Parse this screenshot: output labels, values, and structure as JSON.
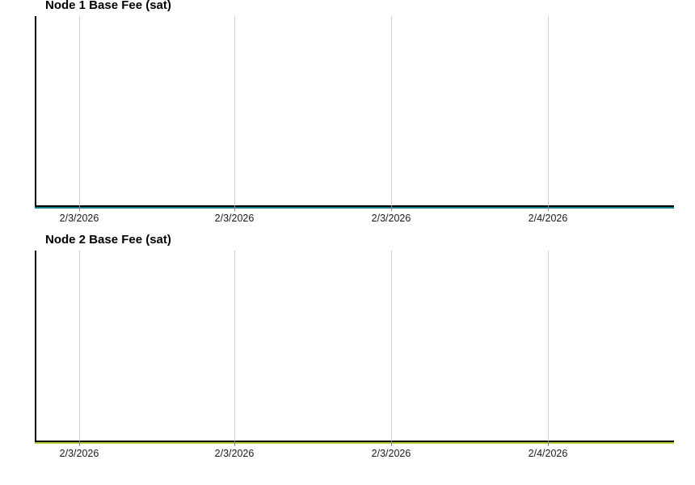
{
  "page": {
    "background_color": "#ffffff",
    "text_color": "#000000",
    "gridline_color": "#d0d0d0",
    "axis_color": "#000000",
    "tick_color": "#8a8a8a"
  },
  "chart_data": [
    {
      "type": "line",
      "title": "Node 1 Base Fee (sat)",
      "xlabel": "",
      "ylabel": "",
      "x_tick_labels": [
        "2/3/2026",
        "2/3/2026",
        "2/3/2026",
        "2/4/2026"
      ],
      "y_tick_labels": [],
      "grid": "vertical-gridlines-only",
      "legend": "none",
      "series": [
        {
          "name": "Node 1 Base Fee (sat)",
          "color": "#15808d",
          "values": [
            0,
            0,
            0,
            0
          ],
          "shape": "constant flat line running along the bottom edge of the plot across the full x-range; y-axis has no visible scale labels"
        }
      ]
    },
    {
      "type": "line",
      "title": "Node 2 Base Fee (sat)",
      "xlabel": "",
      "ylabel": "",
      "x_tick_labels": [
        "2/3/2026",
        "2/3/2026",
        "2/3/2026",
        "2/4/2026"
      ],
      "y_tick_labels": [],
      "grid": "vertical-gridlines-only",
      "legend": "none",
      "series": [
        {
          "name": "Node 2 Base Fee (sat)",
          "color": "#b4cc2e",
          "values": [
            0,
            0,
            0,
            0
          ],
          "shape": "constant flat line running along the bottom edge of the plot across the full x-range; y-axis has no visible scale labels"
        }
      ]
    }
  ]
}
